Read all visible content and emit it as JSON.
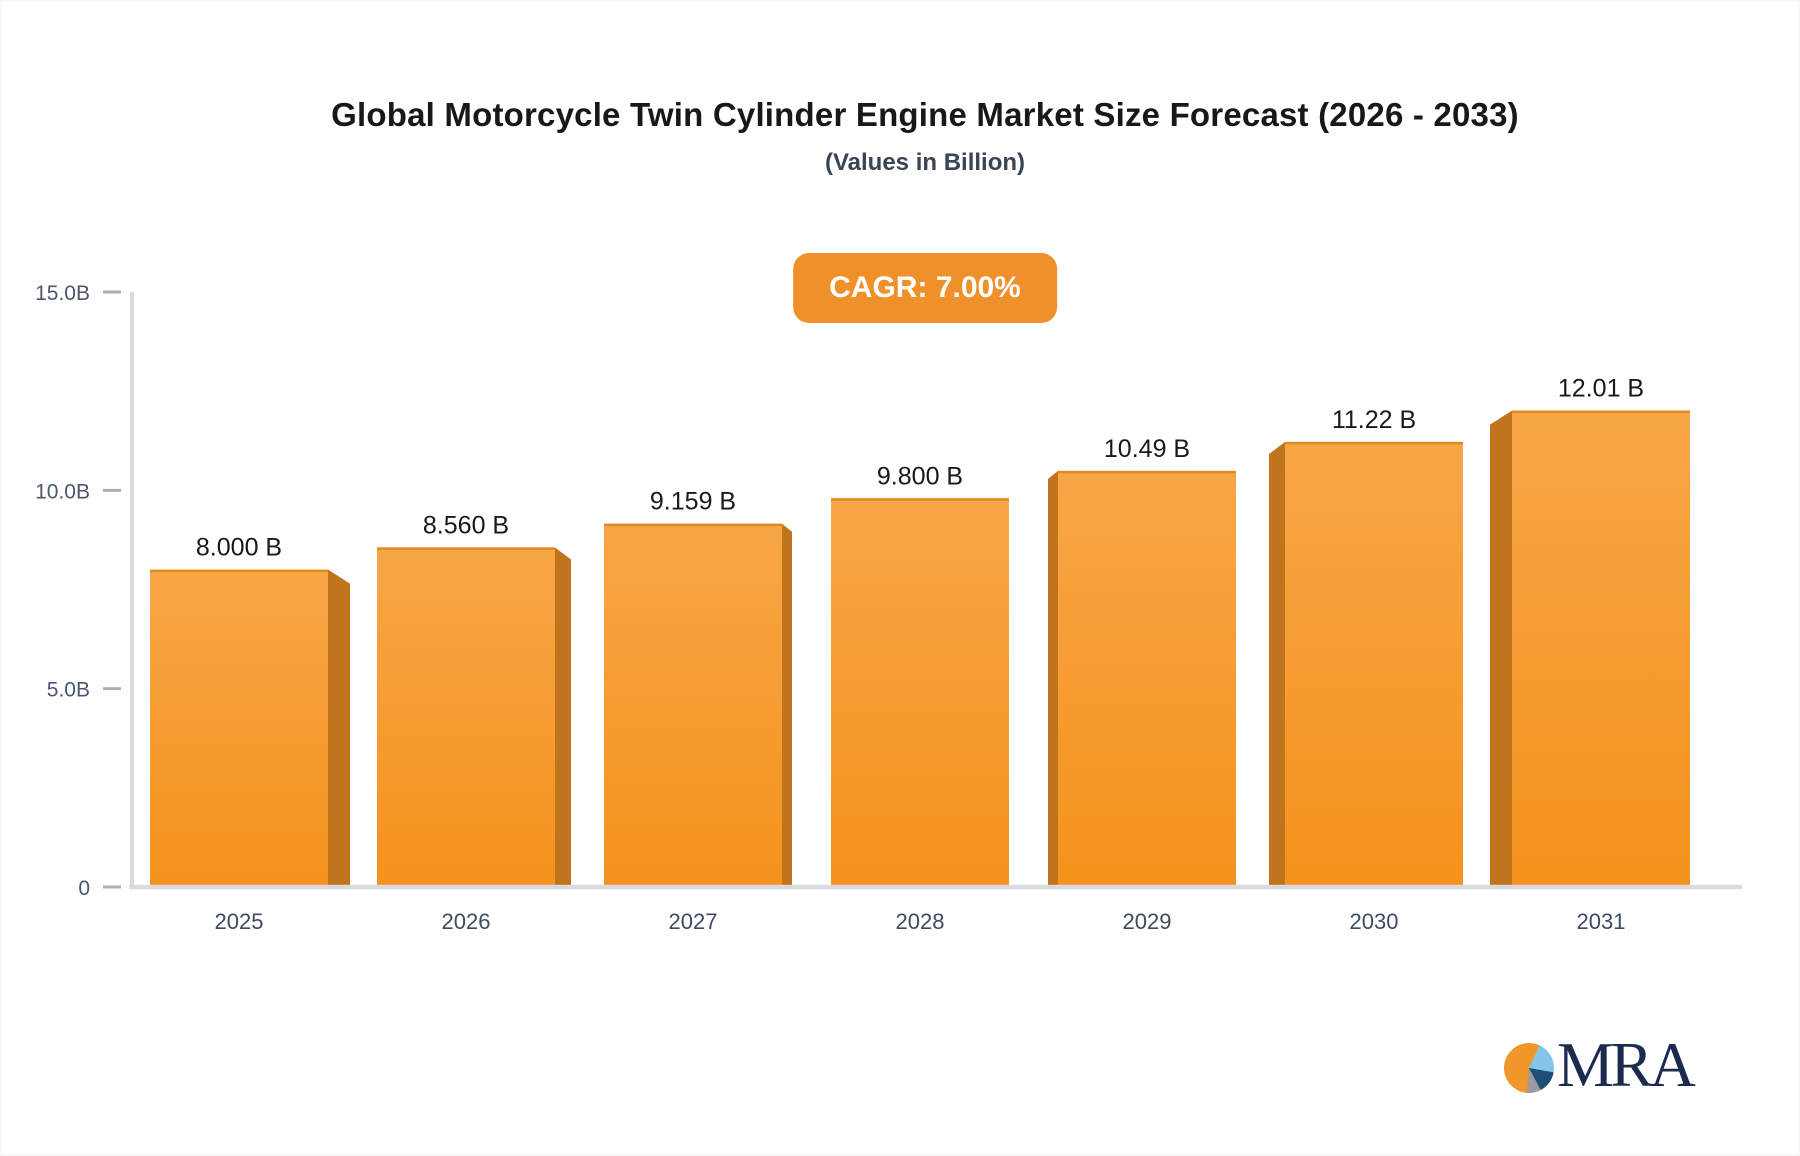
{
  "header": {
    "title": "Global Motorcycle Twin Cylinder Engine Market Size Forecast (2026 - 2033)",
    "subtitle": "(Values in Billion)",
    "cagr_label": "CAGR: 7.00%"
  },
  "chart_data": {
    "type": "bar",
    "title": "Global Motorcycle Twin Cylinder Engine Market Size Forecast (2026 - 2033)",
    "subtitle": "(Values in Billion)",
    "annotation": "CAGR: 7.00%",
    "categories": [
      "2025",
      "2026",
      "2027",
      "2028",
      "2029",
      "2030",
      "2031"
    ],
    "values": [
      8.0,
      8.56,
      9.159,
      9.8,
      10.49,
      11.22,
      12.01
    ],
    "value_labels": [
      "8.000 B",
      "8.560 B",
      "9.159 B",
      "9.800 B",
      "10.49 B",
      "11.22 B",
      "12.01 B"
    ],
    "xlabel": "",
    "ylabel": "",
    "ylim": [
      0,
      15
    ],
    "yticks": [
      0,
      5,
      10,
      15
    ],
    "ytick_labels": [
      "0",
      "5.0B",
      "10.0B",
      "15.0B"
    ],
    "grid": false,
    "legend": null,
    "bar_style": "3d-extruded",
    "colors": {
      "bar_top": "#F7A647",
      "bar_bottom": "#F6921D",
      "bar_side": "#C0751C",
      "bar_edge": "#E18A21",
      "axis": "#D8DBDF",
      "tick": "#A8AEB8",
      "ytick_text": "#4A576C",
      "xtick_text": "#3E4B5F",
      "value_text": "#17191D",
      "badge_bg": "#F0902B"
    }
  },
  "logo": {
    "text": "MRA",
    "icon": "pie-chart-icon",
    "colors": {
      "orange": "#F0962B",
      "light_blue": "#85C6E8",
      "navy": "#1F4E79",
      "gray": "#9C9CA0",
      "text": "#1B2A4E"
    }
  }
}
